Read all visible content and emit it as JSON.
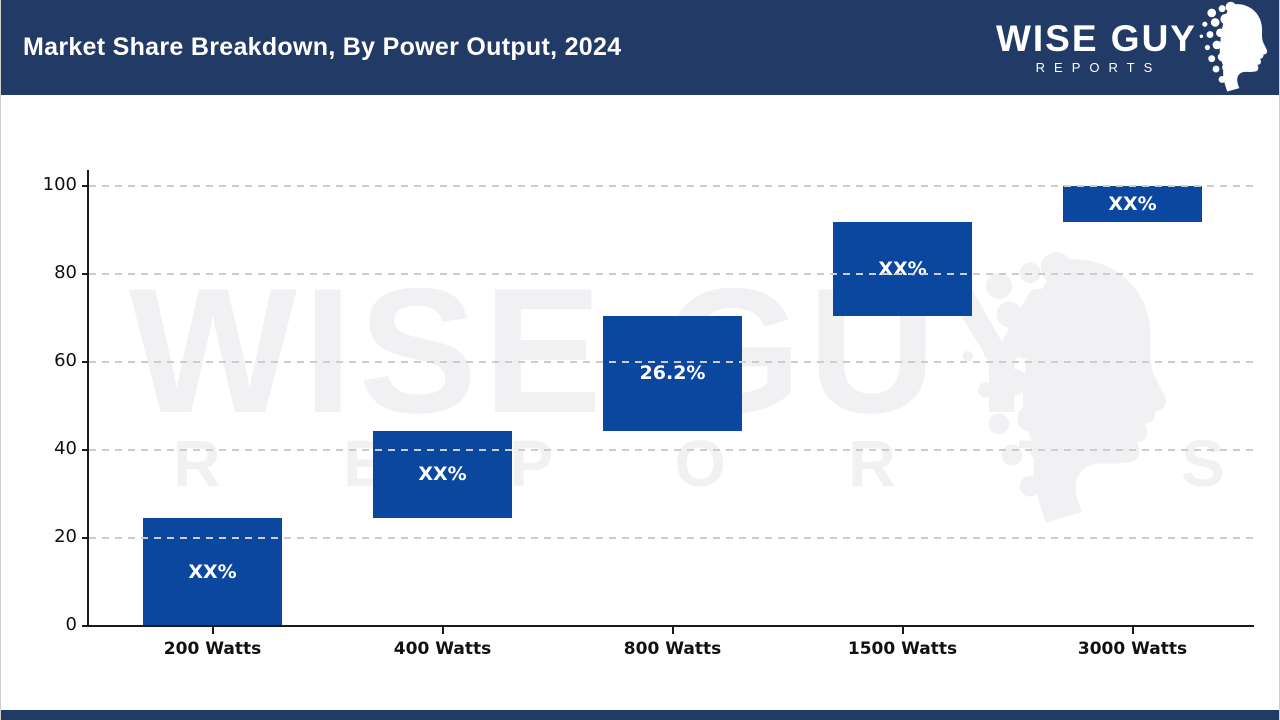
{
  "header": {
    "title": "Market Share Breakdown, By Power Output, 2024",
    "bg_color": "#213A66",
    "logo": {
      "line1": "WISE GUY",
      "line2": "REPORTS",
      "head_icon": "dotted-head-profile"
    }
  },
  "watermark": {
    "line1": "WISE GUY",
    "line2": "REPORTS",
    "color": "#f1f1f3"
  },
  "footer": {
    "bg_color": "#213A66"
  },
  "chart_data": {
    "type": "bar",
    "subtype": "waterfall",
    "title": "Market Share Breakdown, By Power Output, 2024",
    "xlabel": "",
    "ylabel": "",
    "categories": [
      "200 Watts",
      "400 Watts",
      "800 Watts",
      "1500 Watts",
      "3000 Watts"
    ],
    "segments": [
      {
        "category": "200 Watts",
        "start": 0,
        "end": 24.6,
        "label": "XX%"
      },
      {
        "category": "400 Watts",
        "start": 24.6,
        "end": 44.3,
        "label": "XX%"
      },
      {
        "category": "800 Watts",
        "start": 44.3,
        "end": 70.5,
        "label": "26.2%"
      },
      {
        "category": "1500 Watts",
        "start": 70.5,
        "end": 91.8,
        "label": "XX%"
      },
      {
        "category": "3000 Watts",
        "start": 91.8,
        "end": 100,
        "label": "XX%"
      }
    ],
    "yticks": [
      0,
      20,
      40,
      60,
      80,
      100
    ],
    "ylim": [
      0,
      105
    ],
    "grid": "horizontal-dashed",
    "gridline_color": "#cdcdcd",
    "bar_color": "#0B479E",
    "bar_label_color": "#FFFFFF",
    "axis_color": "#1a1a1a",
    "legend": "none"
  }
}
